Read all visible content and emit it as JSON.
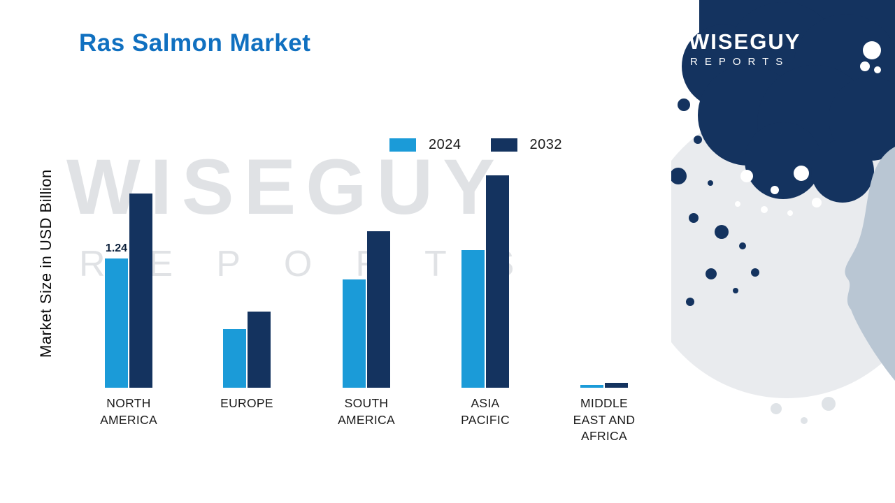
{
  "title": "Ras Salmon Market",
  "title_color": "#1070c0",
  "y_axis_label": "Market Size in USD Billion",
  "watermark": {
    "line1": "WISEGUY",
    "line2": "REPORTS"
  },
  "logo": {
    "name": "WISEGUY",
    "sub": "REPORTS",
    "background_color": "#14335f"
  },
  "legend": {
    "items": [
      {
        "label": "2024",
        "color": "#1b9bd8"
      },
      {
        "label": "2032",
        "color": "#14335f"
      }
    ],
    "position": "top"
  },
  "chart_data": {
    "type": "bar",
    "title": "Ras Salmon Market",
    "xlabel": "",
    "ylabel": "Market Size in USD Billion",
    "ylim": [
      0,
      2.2
    ],
    "grid": false,
    "legend_position": "top",
    "categories": [
      "NORTH AMERICA",
      "EUROPE",
      "SOUTH AMERICA",
      "ASIA PACIFIC",
      "MIDDLE EAST AND AFRICA"
    ],
    "series": [
      {
        "name": "2024",
        "color": "#1b9bd8",
        "values": [
          1.24,
          0.56,
          1.04,
          1.32,
          0.03
        ]
      },
      {
        "name": "2032",
        "color": "#14335f",
        "values": [
          1.86,
          0.73,
          1.5,
          2.04,
          0.05
        ]
      }
    ],
    "annotations": [
      {
        "category": "NORTH AMERICA",
        "series": "2024",
        "text": "1.24"
      }
    ]
  }
}
